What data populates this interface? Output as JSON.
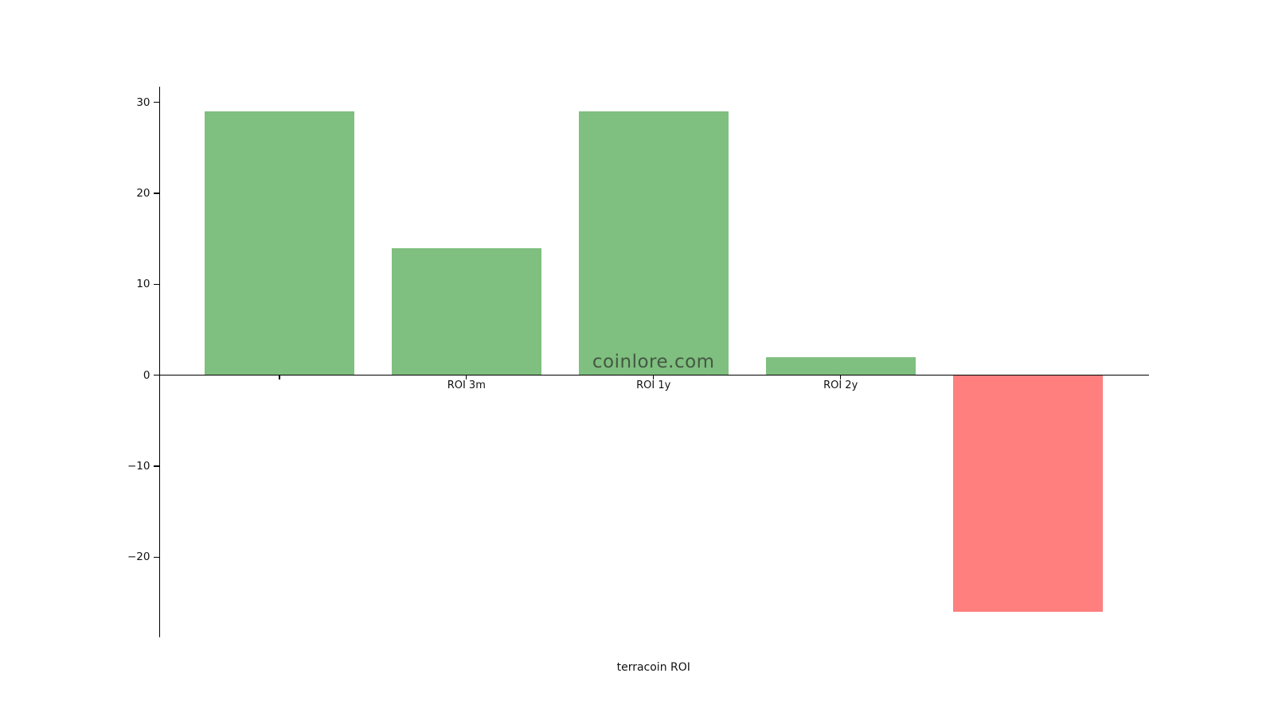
{
  "page": {
    "background": "#ffffff"
  },
  "chart_data": {
    "type": "bar",
    "title": "",
    "xlabel": "terracoin ROI",
    "ylabel": "",
    "watermark": "coinlore.com",
    "categories": [
      "",
      "ROI 3m",
      "ROI 1y",
      "ROI 2y",
      ""
    ],
    "values": [
      29,
      14,
      29,
      2,
      -26
    ],
    "positive_color": "#7fbf7f",
    "negative_color": "#ff7f7f",
    "axis_color": "#000000",
    "tick_text_color": "#111111",
    "watermark_color": "rgba(45, 48, 45, 0.72)",
    "yticks": [
      {
        "value": 30,
        "label": "30"
      },
      {
        "value": 20,
        "label": "20"
      },
      {
        "value": 10,
        "label": "10"
      },
      {
        "value": 0,
        "label": "0"
      },
      {
        "value": -10,
        "label": "−10"
      },
      {
        "value": -20,
        "label": "−20"
      }
    ],
    "ylim": [
      -28.75,
      31.75
    ],
    "xlim": [
      -0.64,
      4.64
    ],
    "bar_width": 0.8,
    "grid": false,
    "legend": "none"
  }
}
